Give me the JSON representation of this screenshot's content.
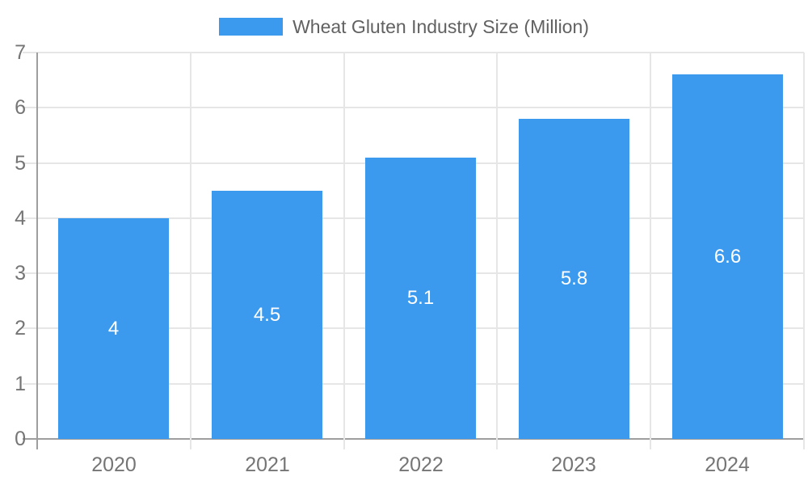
{
  "chart_data": {
    "type": "bar",
    "title": "Wheat Gluten Industry Size (Million)",
    "legend_label": "Wheat Gluten Industry Size (Million)",
    "legend_position": "top",
    "categories": [
      "2020",
      "2021",
      "2022",
      "2023",
      "2024"
    ],
    "series": [
      {
        "name": "Wheat Gluten Industry Size (Million)",
        "values": [
          4,
          4.5,
          5.1,
          5.8,
          6.6
        ]
      }
    ],
    "bar_labels": [
      "4",
      "4.5",
      "5.1",
      "5.8",
      "6.6"
    ],
    "xlabel": "",
    "ylabel": "",
    "ylim": [
      0,
      7
    ],
    "y_ticks": [
      0,
      1,
      2,
      3,
      4,
      5,
      6,
      7
    ],
    "grid": true,
    "colors": {
      "bar": "#3b9aee",
      "bar_label": "#ffffff",
      "gridline": "#e6e6e6",
      "axis_line": "#9e9e9e",
      "tick_label": "#757575",
      "legend_text": "#616161",
      "background": "#ffffff"
    }
  }
}
